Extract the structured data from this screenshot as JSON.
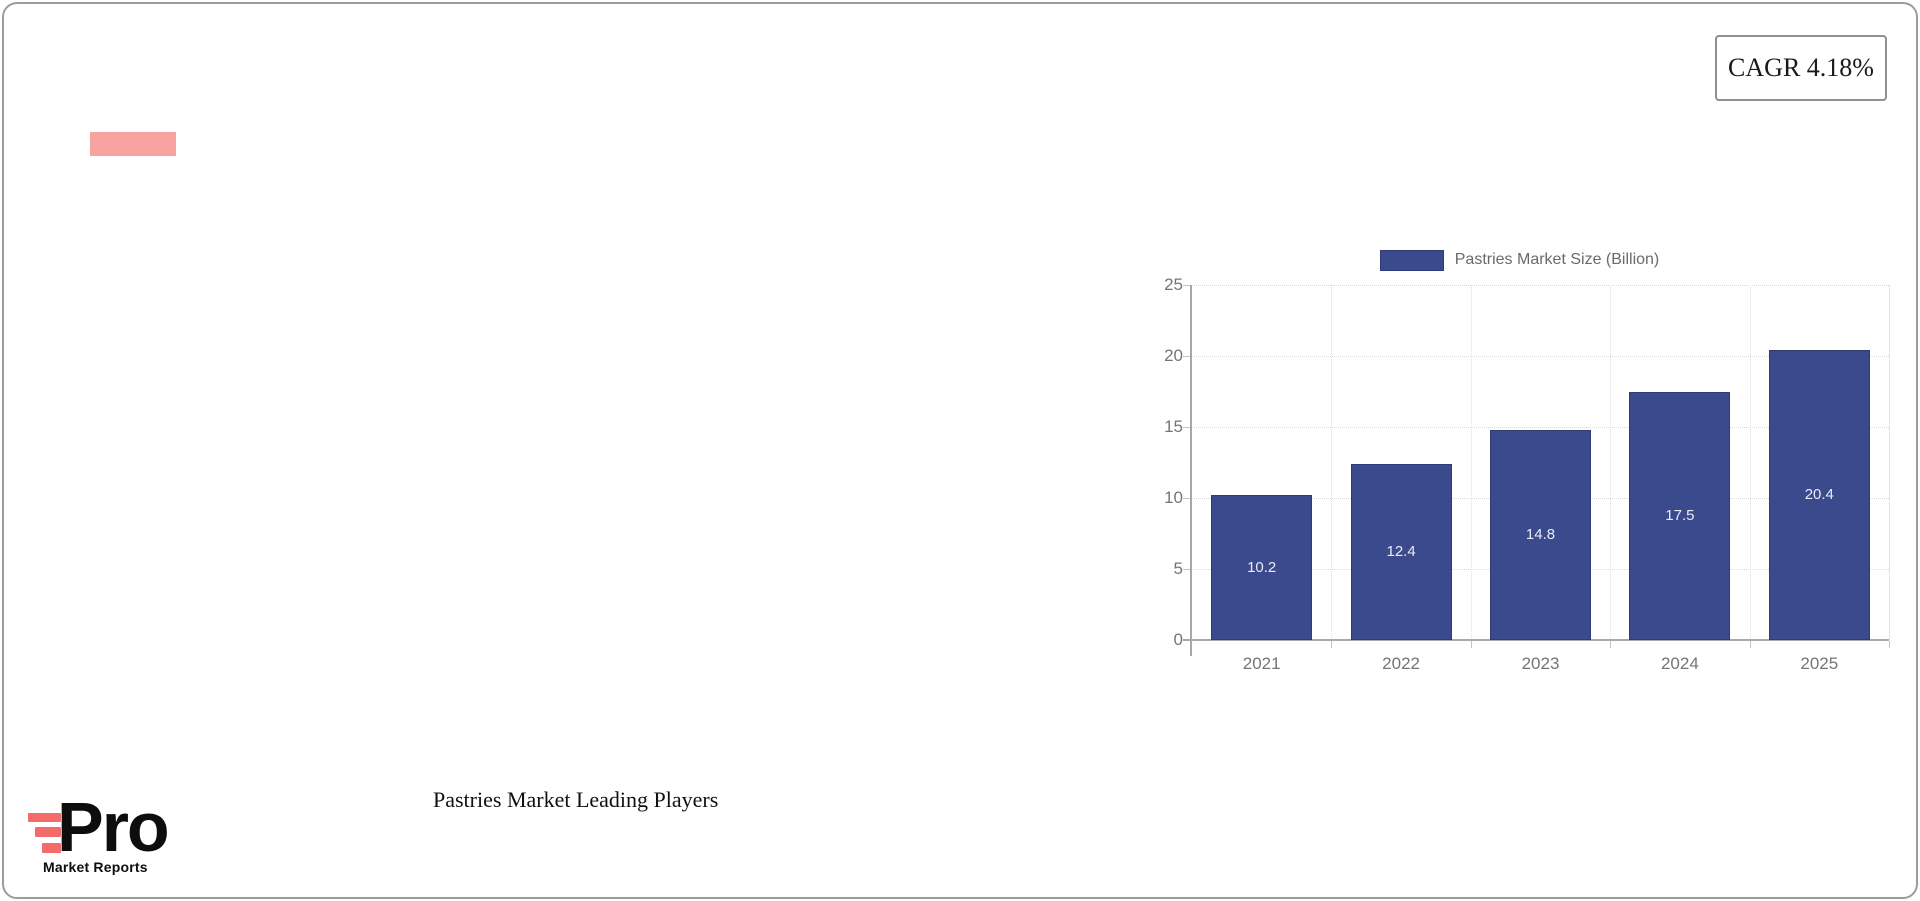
{
  "page": {
    "background": "#ffffff",
    "border_color": "#9c9c9c"
  },
  "highlight_bar": {
    "color": "#f9a2a2"
  },
  "cagr_badge": {
    "label": "CAGR 4.18%"
  },
  "chart_data": {
    "type": "bar",
    "categories": [
      "2021",
      "2022",
      "2023",
      "2024",
      "2025"
    ],
    "values": [
      10.2,
      12.4,
      14.8,
      17.5,
      20.4
    ],
    "series_name": "Pastries Market Size (Billion)",
    "title": "",
    "xlabel": "",
    "ylabel": "",
    "ylim": [
      0,
      25
    ],
    "yticks": [
      0,
      5,
      10,
      15,
      20,
      25
    ],
    "grid": true,
    "legend_position": "top",
    "bar_color": "#3b4a8c",
    "bar_border_color": "#2e3b77",
    "value_label_color": "#e9ecf6",
    "axis_color": "#a8a8a8",
    "tick_label_color": "#757575"
  },
  "footer": {
    "title": "Pastries Market Leading Players"
  },
  "logo": {
    "text": "Pro",
    "subtext": "Market Reports",
    "bar_color": "#f36b6b",
    "text_color": "#0d0d0d"
  }
}
